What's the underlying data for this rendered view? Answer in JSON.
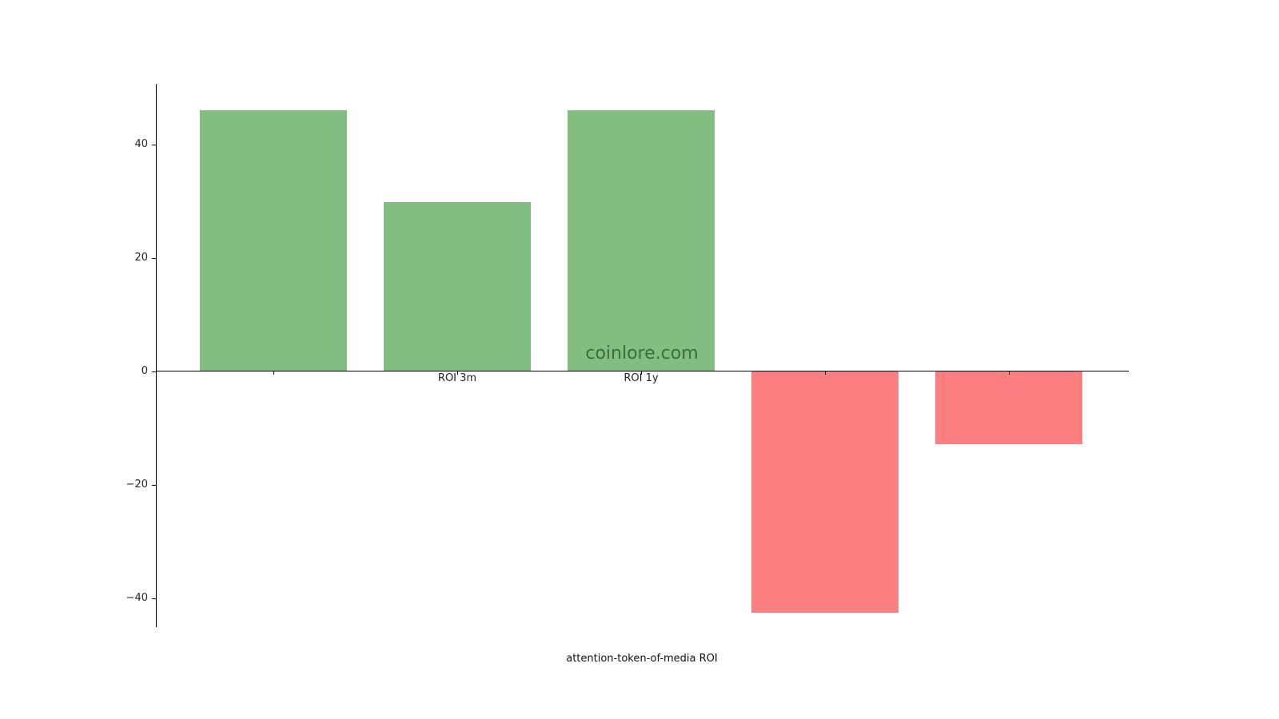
{
  "watermark": {
    "text": "coinlore.com",
    "color": "#3c6e3c"
  },
  "title": "attention-token-of-media ROI",
  "colors": {
    "positive_bar": "#82be82",
    "negative_bar": "#fc8080",
    "axis": "#000000",
    "tick_label": "#262626"
  },
  "chart_data": {
    "type": "bar",
    "title": "attention-token-of-media ROI",
    "xlabel": "",
    "ylabel": "",
    "categories": [
      "",
      "ROI 3m",
      "ROI 1y",
      "",
      ""
    ],
    "values": [
      46.0,
      29.9,
      46.0,
      -42.5,
      -12.8
    ],
    "bar_colors": [
      "#82be82",
      "#82be82",
      "#82be82",
      "#fc8080",
      "#fc8080"
    ],
    "yticks": [
      40,
      20,
      0,
      -20,
      -40
    ],
    "ytick_labels": [
      "40",
      "20",
      "0",
      "−20",
      "−40"
    ],
    "ylim": [
      -45,
      50
    ],
    "grid": false,
    "legend": "none",
    "annotations": [
      "coinlore.com watermark centered above x-axis"
    ]
  }
}
